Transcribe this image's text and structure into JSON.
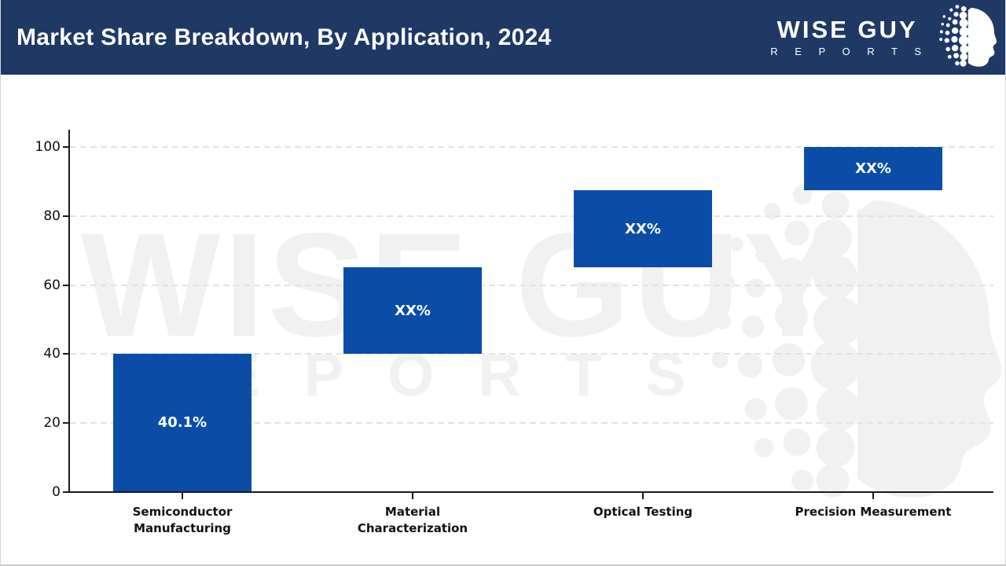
{
  "header": {
    "title": "Market Share Breakdown, By Application, 2024",
    "logo": {
      "line1": "WISE GUY",
      "line2": "R E P O R T S"
    }
  },
  "watermark": {
    "line1": "WISE GUY",
    "line2": "REPORTS"
  },
  "colors": {
    "header_bg": "#1F3864",
    "bar": "#0B4DA6",
    "grid": "#e3e3e3",
    "axis": "#1a1a1a",
    "watermark": "#f1f1f1",
    "title_text": "#ffffff",
    "bar_label": "#ffffff"
  },
  "chart_data": {
    "type": "bar",
    "subtype": "floating-waterfall",
    "title": "Market Share Breakdown, By Application, 2024",
    "categories": [
      "Semiconductor Manufacturing",
      "Material Characterization",
      "Optical Testing",
      "Precision Measurement"
    ],
    "segments": [
      {
        "label": "40.1%",
        "start": 0,
        "end": 40.1
      },
      {
        "label": "XX%",
        "start": 40.1,
        "end": 65.1
      },
      {
        "label": "XX%",
        "start": 65.1,
        "end": 87.4
      },
      {
        "label": "XX%",
        "start": 87.4,
        "end": 100
      }
    ],
    "values_shown": [
      "40.1%",
      "XX%",
      "XX%",
      "XX%"
    ],
    "xlabel": "",
    "ylabel": "",
    "ylim": [
      0,
      100
    ],
    "yticks": [
      0,
      20,
      40,
      60,
      80,
      100
    ],
    "grid": "dashed-horizontal",
    "legend": "none"
  }
}
